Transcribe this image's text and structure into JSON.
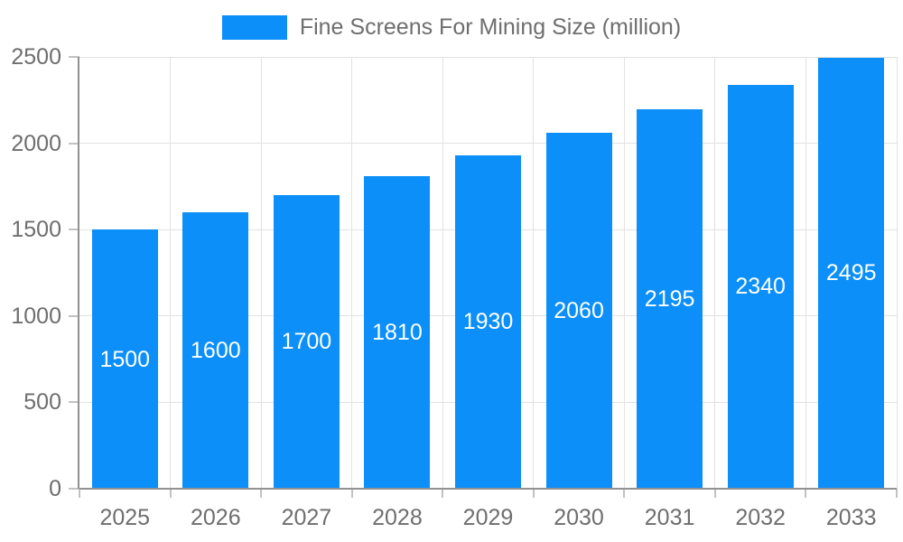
{
  "chart_data": {
    "type": "bar",
    "title": "Fine Screens For Mining Size (million)",
    "legend": [
      "Fine Screens For Mining Size (million)"
    ],
    "legend_position": "top-center",
    "categories": [
      "2025",
      "2026",
      "2027",
      "2028",
      "2029",
      "2030",
      "2031",
      "2032",
      "2033"
    ],
    "series": [
      {
        "name": "Fine Screens For Mining Size (million)",
        "values": [
          1500,
          1600,
          1700,
          1810,
          1930,
          2060,
          2195,
          2340,
          2495
        ]
      }
    ],
    "value_labels": [
      1500,
      1600,
      1700,
      1810,
      1930,
      2060,
      2195,
      2340,
      2495
    ],
    "value_labels_position": "inside-center",
    "xlabel": "",
    "ylabel": "",
    "ylim": [
      0,
      2500
    ],
    "yticks": [
      0,
      500,
      1000,
      1500,
      2000,
      2500
    ],
    "grid": "horizontal-and-vertical",
    "colors": {
      "bar": "#0c8ff8",
      "value_label": "#ffffff",
      "gridline": "#e2e2e2",
      "axis_line": "#919191",
      "tick_mark": "#c2c2c2",
      "tick_label": "#6e6e6e",
      "background": "#ffffff"
    }
  }
}
